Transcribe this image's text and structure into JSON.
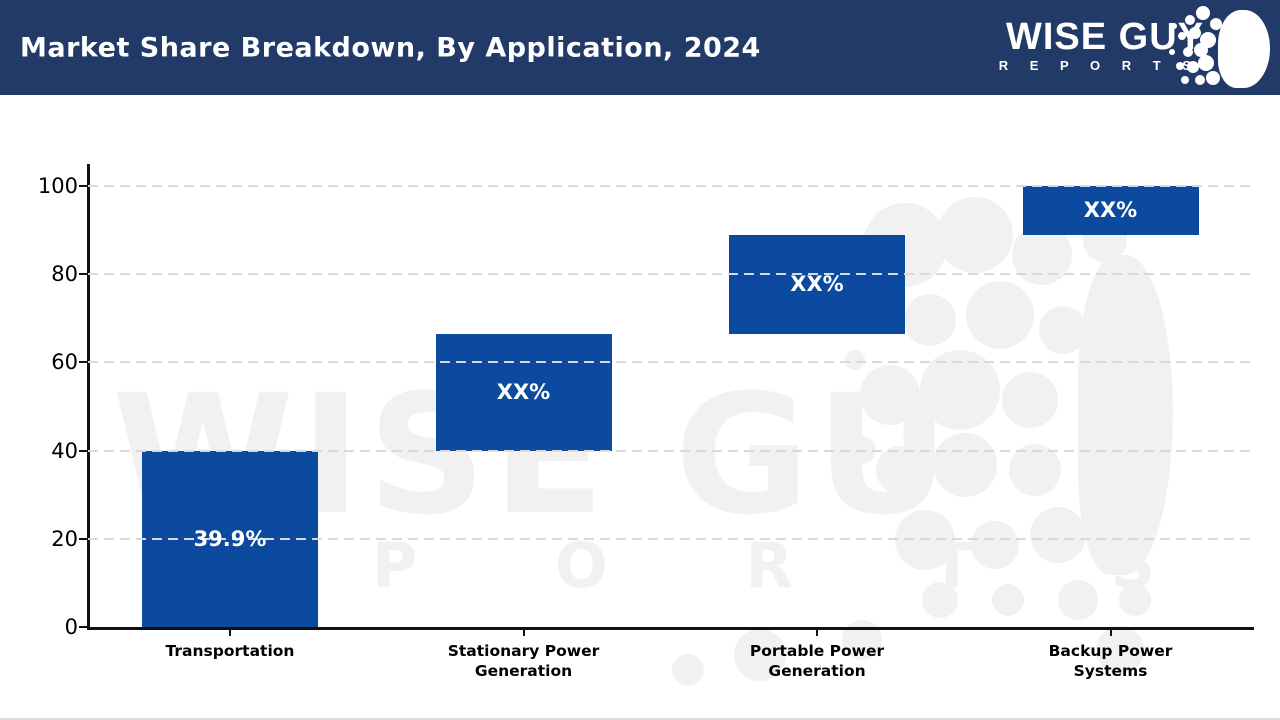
{
  "header": {
    "title": "Market Share Breakdown, By Application, 2024",
    "logo": {
      "wordmark": "WISE GUY",
      "subtext": "R E P O R T S"
    }
  },
  "watermark": {
    "line1": "WISE GU",
    "line2": "P O R T S"
  },
  "chart_data": {
    "type": "bar",
    "subtype": "floating-segment waterfall of market share by application",
    "title": "Market Share Breakdown, By Application, 2024",
    "categories": [
      "Transportation",
      "Stationary Power Generation",
      "Portable Power Generation",
      "Backup Power Systems"
    ],
    "segments": [
      {
        "category": "Transportation",
        "start": 0,
        "end": 39.9,
        "label": "39.9%"
      },
      {
        "category": "Stationary Power Generation",
        "start": 39.9,
        "end": 66.5,
        "label": "XX%"
      },
      {
        "category": "Portable Power Generation",
        "start": 66.5,
        "end": 88.9,
        "label": "XX%"
      },
      {
        "category": "Backup Power Systems",
        "start": 88.9,
        "end": 100,
        "label": "XX%"
      }
    ],
    "yticks": [
      0,
      20,
      40,
      60,
      80,
      100
    ],
    "ylim": [
      0,
      100
    ],
    "xlabel": "",
    "ylabel": "",
    "grid": "horizontal dashed, drawn over bars",
    "legend": "none",
    "bar_color": "#0b4a9e",
    "bar_label_color": "#ffffff"
  },
  "colors": {
    "header_bg": "#213a68",
    "header_text": "#ffffff",
    "bar": "#0b4a9e",
    "gridline": "#d9d9d9",
    "axis": "#111111",
    "watermark": "#f1f1f1",
    "background": "#ffffff",
    "bottom_rule": "#d9d9d9"
  }
}
